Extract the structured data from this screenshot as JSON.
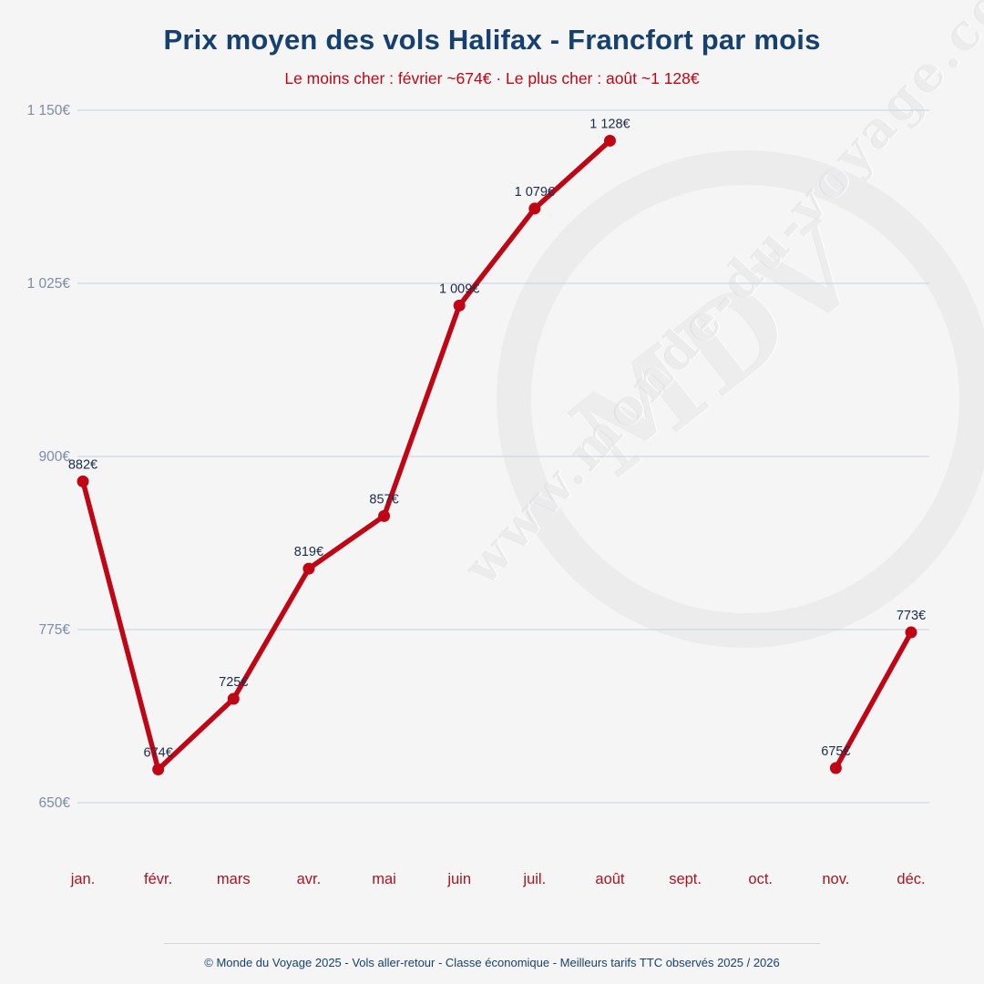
{
  "page": {
    "title": "Prix moyen des vols Halifax - Francfort par mois",
    "subtitle": "Le moins cher : février ~674€ · Le plus cher : août ~1 128€",
    "watermark_url": "www.monde-du-voyage.com",
    "watermark_badge": "MDV",
    "footer": "© Monde du Voyage 2025 - Vols aller-retour - Classe économique - Meilleurs tarifs TTC observés 2025 / 2026"
  },
  "chart_data": {
    "type": "line",
    "title": "Prix moyen des vols Halifax - Francfort par mois",
    "subtitle": "Le moins cher : février ~674€ · Le plus cher : août ~1 128€",
    "categories": [
      "jan.",
      "févr.",
      "mars",
      "avr.",
      "mai",
      "juin",
      "juil.",
      "août",
      "sept.",
      "oct.",
      "nov.",
      "déc."
    ],
    "values": [
      882,
      674,
      725,
      819,
      857,
      1009,
      1079,
      1128,
      null,
      null,
      675,
      773
    ],
    "value_labels": [
      "882€",
      "674€",
      "725€",
      "819€",
      "857€",
      "1 009€",
      "1 079€",
      "1 128€",
      null,
      null,
      "675€",
      "773€"
    ],
    "y_ticks": [
      650,
      775,
      900,
      1025,
      1150
    ],
    "y_tick_labels": [
      "650€",
      "775€",
      "900€",
      "1 025€",
      "1 150€"
    ],
    "ylim": [
      650,
      1150
    ],
    "xlabel": "",
    "ylabel": "",
    "grid": true,
    "legend": false,
    "gaps": [
      "sept.",
      "oct."
    ],
    "currency": "EUR"
  },
  "colors": {
    "background": "#f5f5f6",
    "title": "#16406f",
    "subtitle": "#c00615",
    "line": "#c00615",
    "point": "#c00615",
    "value_label": "#1c2b4a",
    "axis_label": "#7d8ca8",
    "month_label": "#ab1420",
    "gridline": "#c7cfdd",
    "footer_text": "#16406f"
  }
}
